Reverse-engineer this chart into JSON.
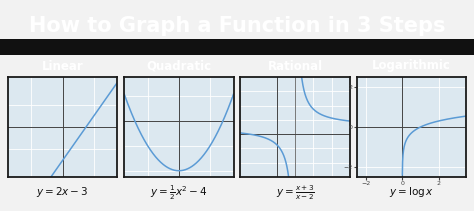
{
  "title": "How to Graph a Function in 3 Steps",
  "title_bg_top": "#3a3a3a",
  "title_bg_bot": "#1a1a1a",
  "title_color": "#ffffff",
  "title_fontsize": 15,
  "main_bg": "#f2f2f2",
  "graph_bg": "#dce8f0",
  "curve_color": "#5b9bd5",
  "grid_color": "#ffffff",
  "axis_color": "#444444",
  "border_color": "#1a1a1a",
  "labels": [
    "Linear",
    "Quadratic",
    "Rational",
    "Logarithmic"
  ],
  "label_colors": [
    "#9b3fcf",
    "#1ab3e8",
    "#e8197a",
    "#f0a500"
  ],
  "label_text_color": "#ffffff",
  "label_fontsize": 8.5,
  "eq_fontsize": 7.5,
  "tick_fontsize": 4.5,
  "lw": 1.1
}
